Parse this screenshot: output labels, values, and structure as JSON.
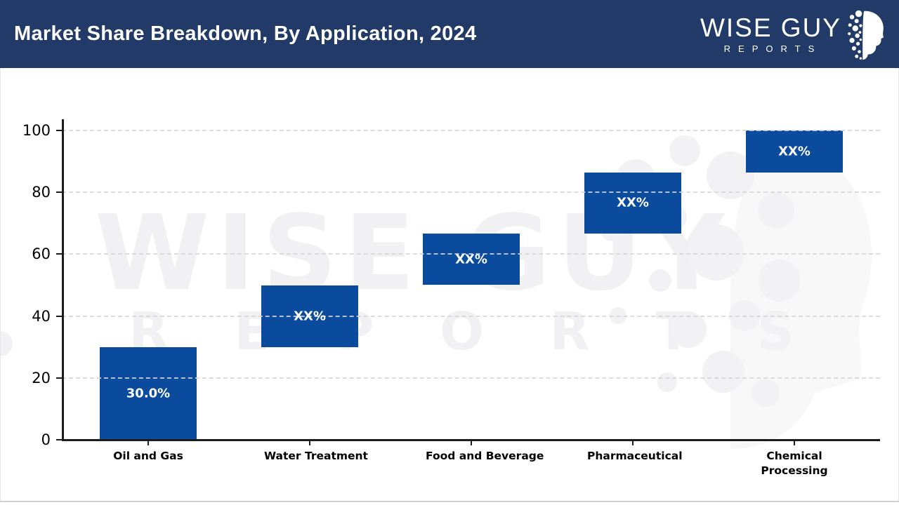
{
  "header": {
    "title": "Market Share Breakdown, By Application, 2024",
    "bg_color": "#223a68",
    "logo": {
      "line1": "WISE GUY",
      "line2": "REPORTS"
    }
  },
  "watermark": {
    "line1": "WISE GUY",
    "line2": "R E P O R T S"
  },
  "chart_data": {
    "type": "bar",
    "variant": "waterfall",
    "title": "Market Share Breakdown, By Application, 2024",
    "categories": [
      "Oil and Gas",
      "Water Treatment",
      "Food and Beverage",
      "Pharmaceutical",
      "Chemical Processing"
    ],
    "bars": [
      {
        "category": "Oil and Gas",
        "start": 0,
        "end": 30,
        "label": "30.0%"
      },
      {
        "category": "Water Treatment",
        "start": 30,
        "end": 50,
        "label": "XX%"
      },
      {
        "category": "Food and Beverage",
        "start": 50,
        "end": 66.7,
        "label": "XX%"
      },
      {
        "category": "Pharmaceutical",
        "start": 66.7,
        "end": 86.5,
        "label": "XX%"
      },
      {
        "category": "Chemical Processing",
        "start": 86.5,
        "end": 100,
        "label": "XX%"
      }
    ],
    "y_ticks": [
      0,
      20,
      40,
      60,
      80,
      100
    ],
    "ylim": [
      0,
      103.6
    ],
    "xlabel": "",
    "ylabel": "",
    "grid": true,
    "grid_style": "dashed",
    "legend": "none",
    "bar_color": "#0a4b9e",
    "bar_label_color": "#ffffff",
    "axis_color": "#1c1c1c"
  }
}
